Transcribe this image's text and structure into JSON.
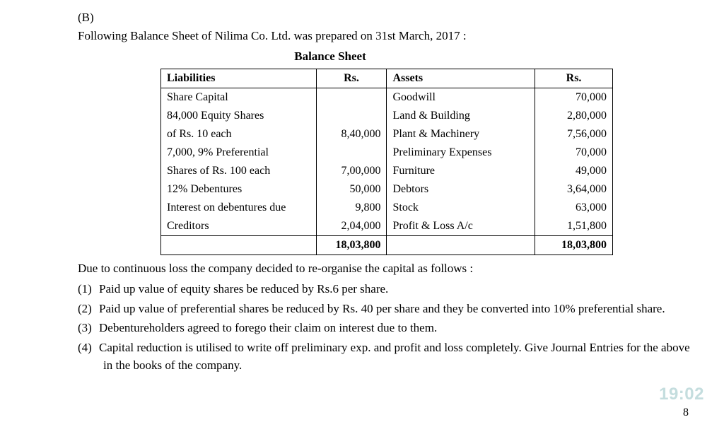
{
  "question": {
    "label": "(B)",
    "intro": "Following Balance Sheet of Nilima Co. Ltd. was prepared on 31st March, 2017 :"
  },
  "sheet": {
    "title": "Balance Sheet",
    "headers": {
      "liab": "Liabilities",
      "rs1": "Rs.",
      "assets": "Assets",
      "rs2": "Rs."
    },
    "rows": [
      {
        "liab": "Share Capital",
        "rs1": "",
        "asset": "Goodwill",
        "rs2": "70,000"
      },
      {
        "liab": "84,000 Equity Shares",
        "rs1": "",
        "asset": "Land & Building",
        "rs2": "2,80,000"
      },
      {
        "liab": "of Rs. 10 each",
        "rs1": "8,40,000",
        "asset": "Plant & Machinery",
        "rs2": "7,56,000"
      },
      {
        "liab": "7,000, 9% Preferential",
        "rs1": "",
        "asset": "Preliminary Expenses",
        "rs2": "70,000"
      },
      {
        "liab": "Shares of Rs. 100 each",
        "rs1": "7,00,000",
        "asset": "Furniture",
        "rs2": "49,000"
      },
      {
        "liab": "12% Debentures",
        "rs1": "50,000",
        "asset": "Debtors",
        "rs2": "3,64,000"
      },
      {
        "liab": "Interest on debentures due",
        "rs1": "9,800",
        "asset": "Stock",
        "rs2": "63,000"
      },
      {
        "liab": "Creditors",
        "rs1": "2,04,000",
        "asset": "Profit & Loss A/c",
        "rs2": "1,51,800"
      }
    ],
    "total": {
      "rs1": "18,03,800",
      "rs2": "18,03,800"
    }
  },
  "post": "Due to continuous loss the company decided to re-organise the capital as follows :",
  "items": [
    {
      "n": "(1)",
      "t": "Paid up value of equity shares be reduced by Rs.6 per share."
    },
    {
      "n": "(2)",
      "t": "Paid up value of preferential shares be reduced by Rs. 40 per share and they be converted into 10% preferential share."
    },
    {
      "n": "(3)",
      "t": "Debentureholders agreed to forego their claim on interest due to them."
    },
    {
      "n": "(4)",
      "t": "Capital reduction is utilised to write off preliminary exp. and profit and loss completely. Give Journal Entries for the above in the books of the company."
    }
  ],
  "watermark": "19:02",
  "page": "8"
}
